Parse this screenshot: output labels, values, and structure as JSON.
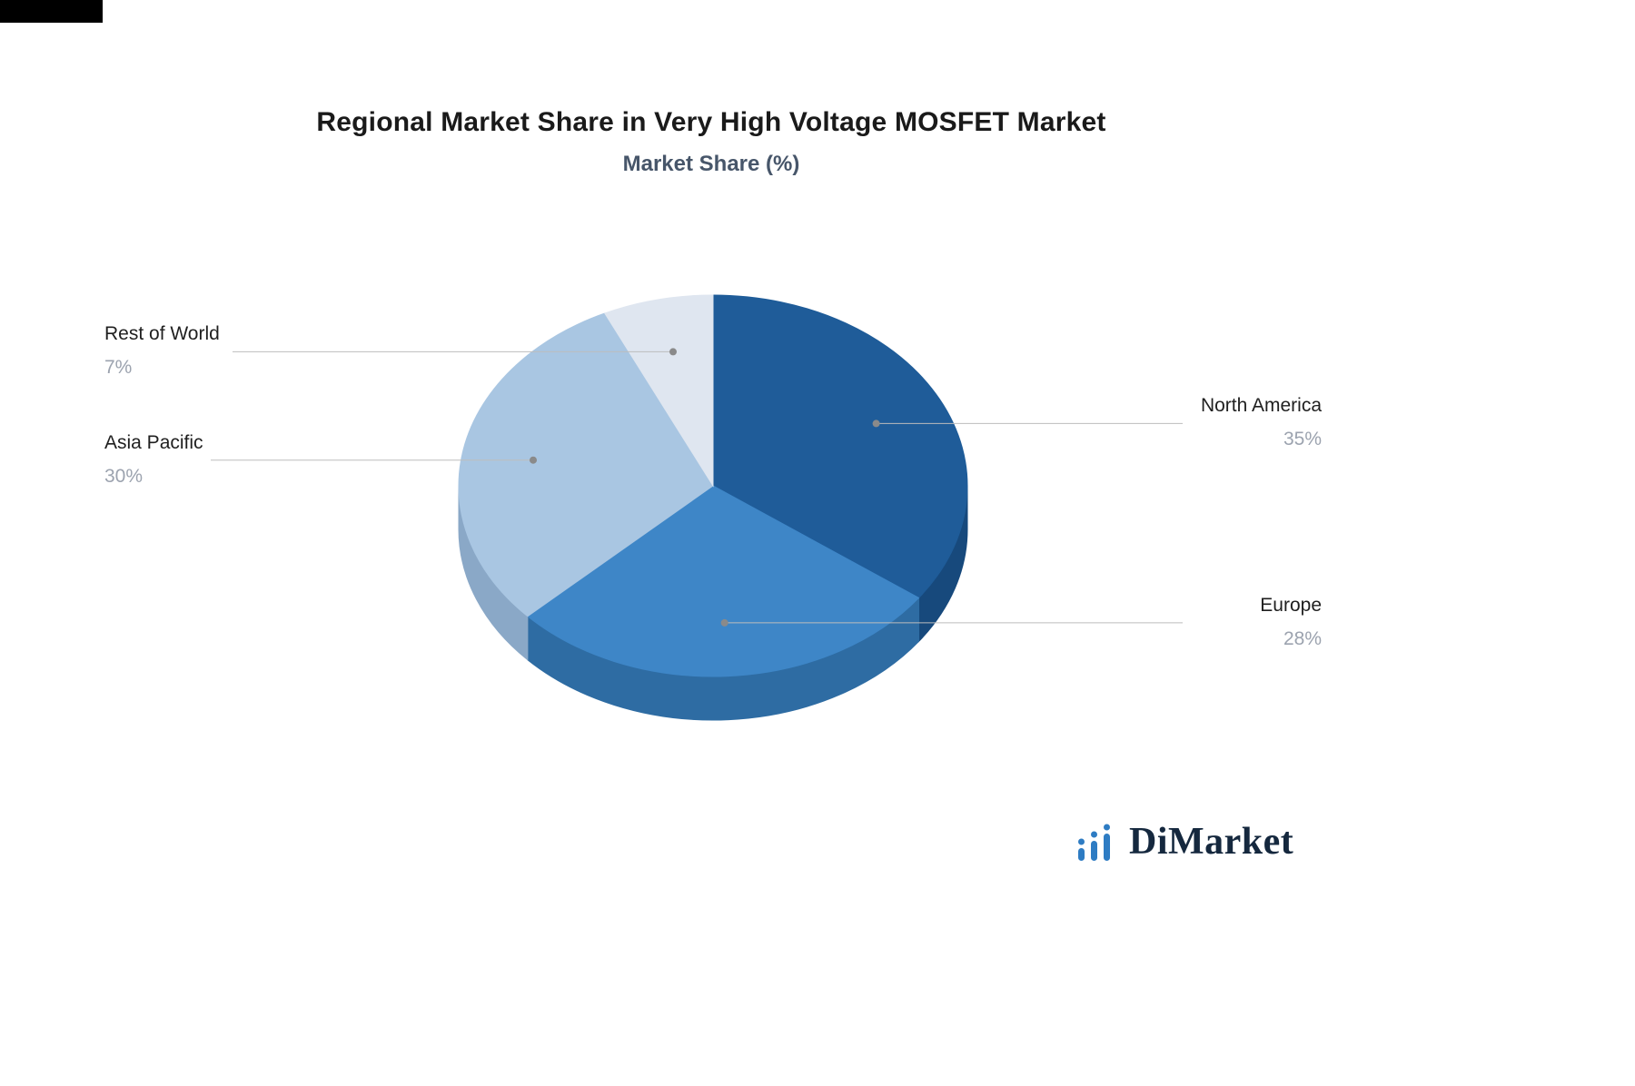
{
  "page": {
    "title": "Regional Market Share in Very High Voltage MOSFET Market",
    "subtitle": "Market Share (%)"
  },
  "brand": {
    "name": "DiMarket",
    "icon": "bar-chart-logo-icon",
    "color": "#15283e",
    "icon_color": "#2e7cc3"
  },
  "chart_data": {
    "type": "pie",
    "pie_style": "3d",
    "title": "Regional Market Share in Very High Voltage MOSFET Market",
    "subtitle": "Market Share (%)",
    "unit": "%",
    "labels": [
      "North America",
      "Europe",
      "Asia Pacific",
      "Rest of World"
    ],
    "values": [
      35,
      28,
      30,
      7
    ],
    "value_labels": [
      "35%",
      "28%",
      "30%",
      "7%"
    ],
    "colors": [
      "#1f5c99",
      "#3e86c7",
      "#a9c6e2",
      "#dfe6f0"
    ],
    "side_colors": [
      "#17497c",
      "#2e6ca3",
      "#8aa8c7",
      "#c2cddc"
    ],
    "start_angle_deg": 0,
    "direction": "clockwise",
    "legend": "none",
    "label_style": "callout-lines",
    "callout_line_color": "#bdbdbd",
    "callout_dot_color": "#8a8a8a"
  }
}
